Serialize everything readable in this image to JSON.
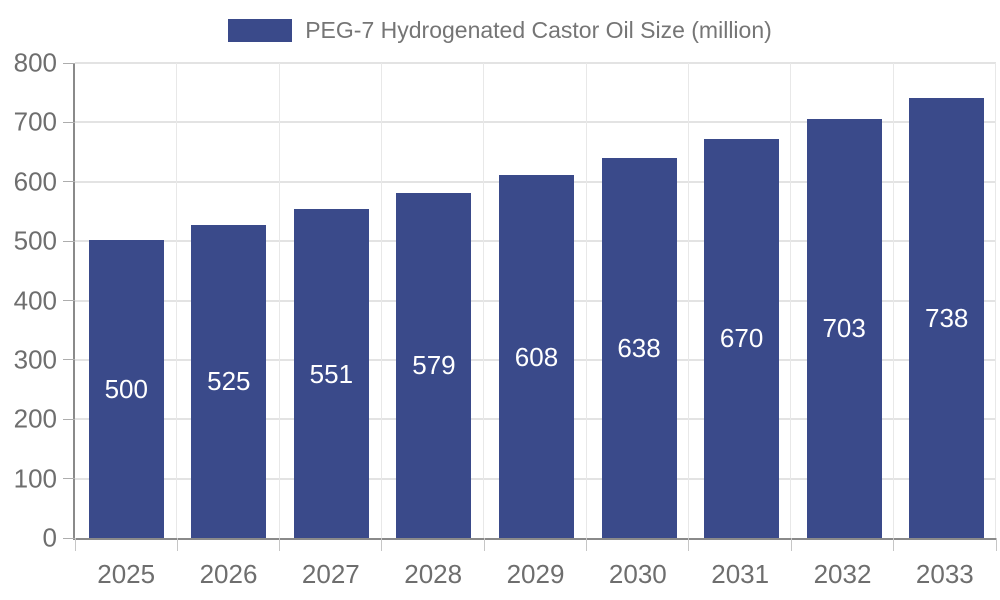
{
  "legend": {
    "label": "PEG-7 Hydrogenated Castor Oil Size (million)"
  },
  "chart_data": {
    "type": "bar",
    "title": "PEG-7 Hydrogenated Castor Oil Size (million)",
    "series_name": "PEG-7 Hydrogenated Castor Oil Size (million)",
    "categories": [
      "2025",
      "2026",
      "2027",
      "2028",
      "2029",
      "2030",
      "2031",
      "2032",
      "2033"
    ],
    "values": [
      500,
      525,
      551,
      579,
      608,
      638,
      670,
      703,
      738
    ],
    "bar_labels": [
      "500",
      "525",
      "551",
      "579",
      "608",
      "638",
      "670",
      "703",
      "738"
    ],
    "xlabel": "",
    "ylabel": "",
    "ylim": [
      0,
      800
    ],
    "yticks": [
      0,
      100,
      200,
      300,
      400,
      500,
      600,
      700,
      800
    ],
    "grid": true,
    "legend_position": "top",
    "colors": {
      "bar": "#3A4A8A",
      "bar_value_text": "#FFFFFF",
      "axis_line": "#8A8A8A",
      "hgrid": "#E3E3E3",
      "vgrid": "#E8E8E8",
      "tick_label": "#6E6E6E",
      "legend_text": "#757575",
      "background": "#FFFFFF"
    }
  }
}
